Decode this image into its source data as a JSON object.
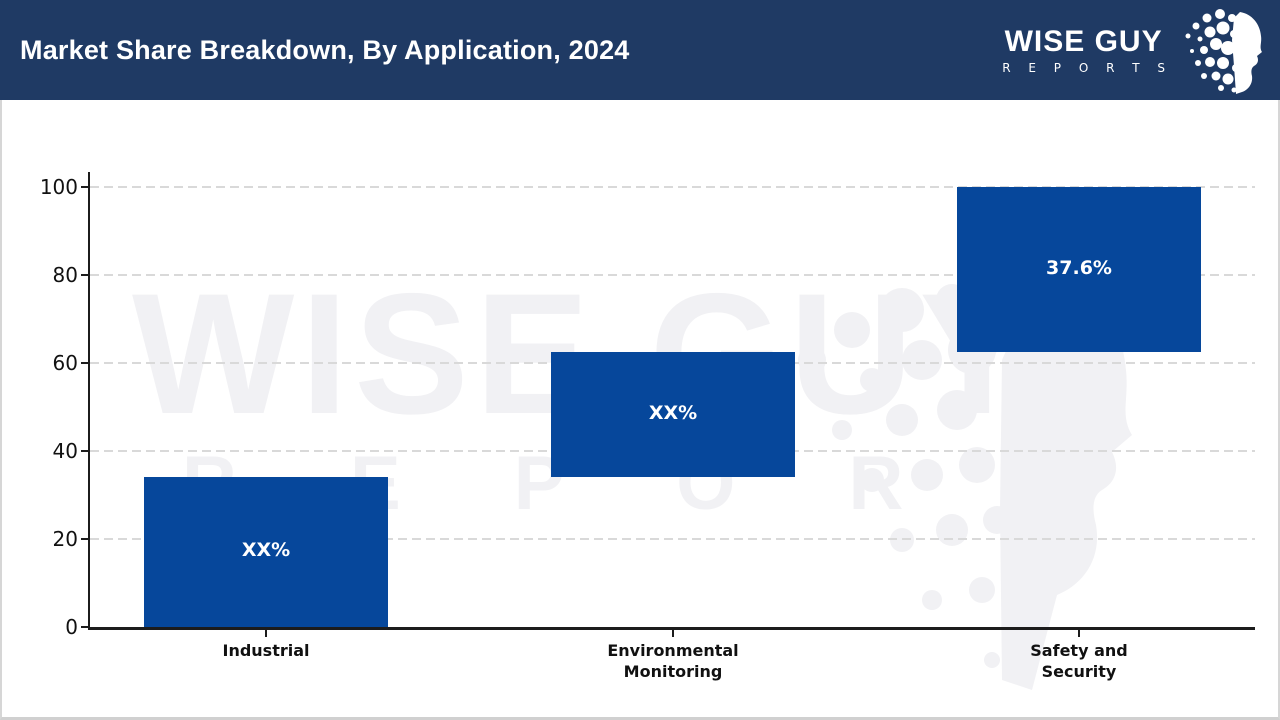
{
  "header": {
    "title": "Market Share Breakdown, By Application, 2024",
    "logo": {
      "brand": "WISE GUY",
      "sub": "R E P O R T S"
    }
  },
  "watermark": {
    "brand": "WISE GUY",
    "sub": "R E P O R S"
  },
  "colors": {
    "header_bg": "#1F3A64",
    "bar": "#06479B",
    "bar_label": "#FFFFFF",
    "grid": "#D9D9D9",
    "axis": "#1C1C1C",
    "tick_text": "#111111",
    "watermark": "#F1F1F4",
    "border": "#D6D6D6"
  },
  "chart_data": {
    "type": "bar",
    "subtype": "waterfall-floating-bars",
    "title": "Market Share Breakdown, By Application, 2024",
    "categories": [
      "Industrial",
      "Environmental\nMonitoring",
      "Safety and\nSecurity"
    ],
    "bars": [
      {
        "category": "Industrial",
        "start": 0,
        "end": 34,
        "value": 34,
        "value_label": "XX%"
      },
      {
        "category": "Environmental Monitoring",
        "start": 34,
        "end": 62.4,
        "value": 28.4,
        "value_label": "XX%"
      },
      {
        "category": "Safety and Security",
        "start": 62.4,
        "end": 100,
        "value": 37.6,
        "value_label": "37.6%"
      }
    ],
    "yticks": [
      0,
      20,
      40,
      60,
      80,
      100
    ],
    "ylim": [
      0,
      103.5
    ],
    "xlabel": "",
    "ylabel": "",
    "grid": "horizontal-dashed",
    "legend": "none"
  }
}
